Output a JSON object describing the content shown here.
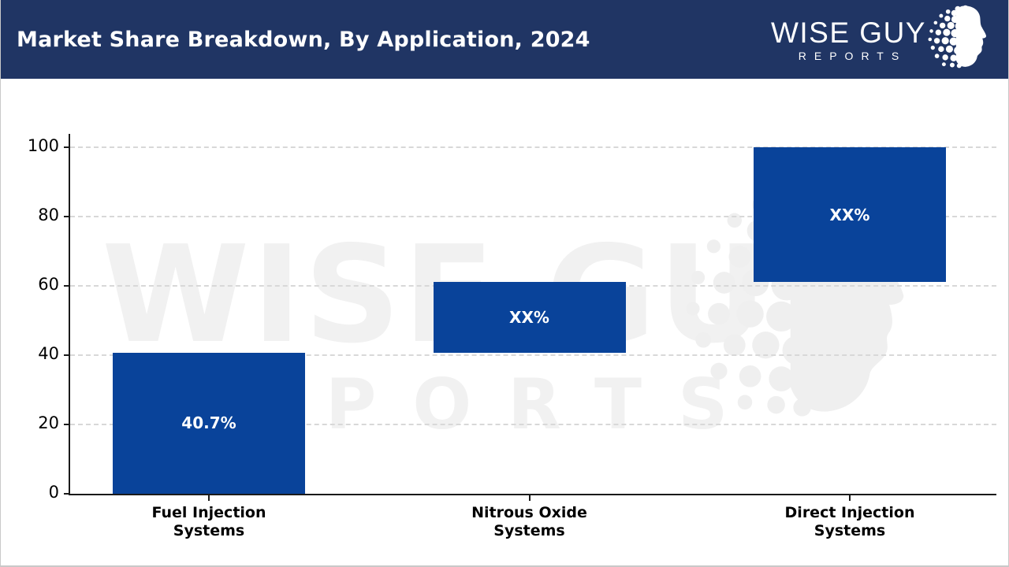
{
  "header": {
    "title": "Market Share Breakdown, By Application, 2024",
    "bg_color": "#203564",
    "logo": {
      "wordmark": "WISE GUY",
      "subtext": "REPORTS"
    }
  },
  "watermark": {
    "wordmark": "WISE GUY",
    "subtext": "REPORTS"
  },
  "chart_data": {
    "type": "bar",
    "subtype": "waterfall",
    "title": "Market Share Breakdown, By Application, 2024",
    "categories": [
      "Fuel Injection Systems",
      "Nitrous Oxide Systems",
      "Direct Injection Systems"
    ],
    "segments": [
      {
        "category": "Fuel Injection Systems",
        "start": 0,
        "end": 40.7,
        "label": "40.7%"
      },
      {
        "category": "Nitrous Oxide Systems",
        "start": 40.7,
        "end": 61.1,
        "label": "XX%"
      },
      {
        "category": "Direct Injection Systems",
        "start": 61.1,
        "end": 100,
        "label": "XX%"
      }
    ],
    "bar_color": "#09439a",
    "value_label_color": "#ffffff",
    "yticks": [
      0,
      20,
      40,
      60,
      80,
      100
    ],
    "ylim": [
      0,
      100
    ],
    "grid": "horizontal-dashed",
    "legend": null
  }
}
